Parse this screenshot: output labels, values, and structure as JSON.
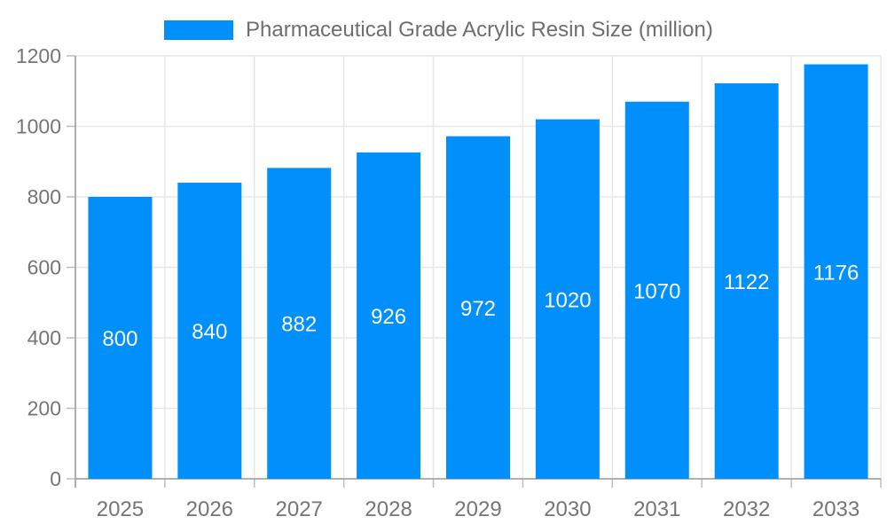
{
  "legend": {
    "label": "Pharmaceutical Grade Acrylic Resin Size (million)"
  },
  "colors": {
    "bar": "#008FFB",
    "grid_line": "#e7e7e7",
    "axis_line": "#a6a6a6",
    "tick_line": "#bdbdbd",
    "axis_label": "#757575",
    "value_label": "#ffffff",
    "legend_text": "#6e6e6e"
  },
  "chart_data": {
    "type": "bar",
    "title": "Pharmaceutical Grade Acrylic Resin Size (million)",
    "categories": [
      "2025",
      "2026",
      "2027",
      "2028",
      "2029",
      "2030",
      "2031",
      "2032",
      "2033"
    ],
    "values": [
      800,
      840,
      882,
      926,
      972,
      1020,
      1070,
      1122,
      1176
    ],
    "xlabel": "",
    "ylabel": "",
    "ylim": [
      0,
      1200
    ],
    "yticks": [
      0,
      200,
      400,
      600,
      800,
      1000,
      1200
    ],
    "grid": true,
    "legend_position": "top",
    "value_labels": "inside-center"
  }
}
